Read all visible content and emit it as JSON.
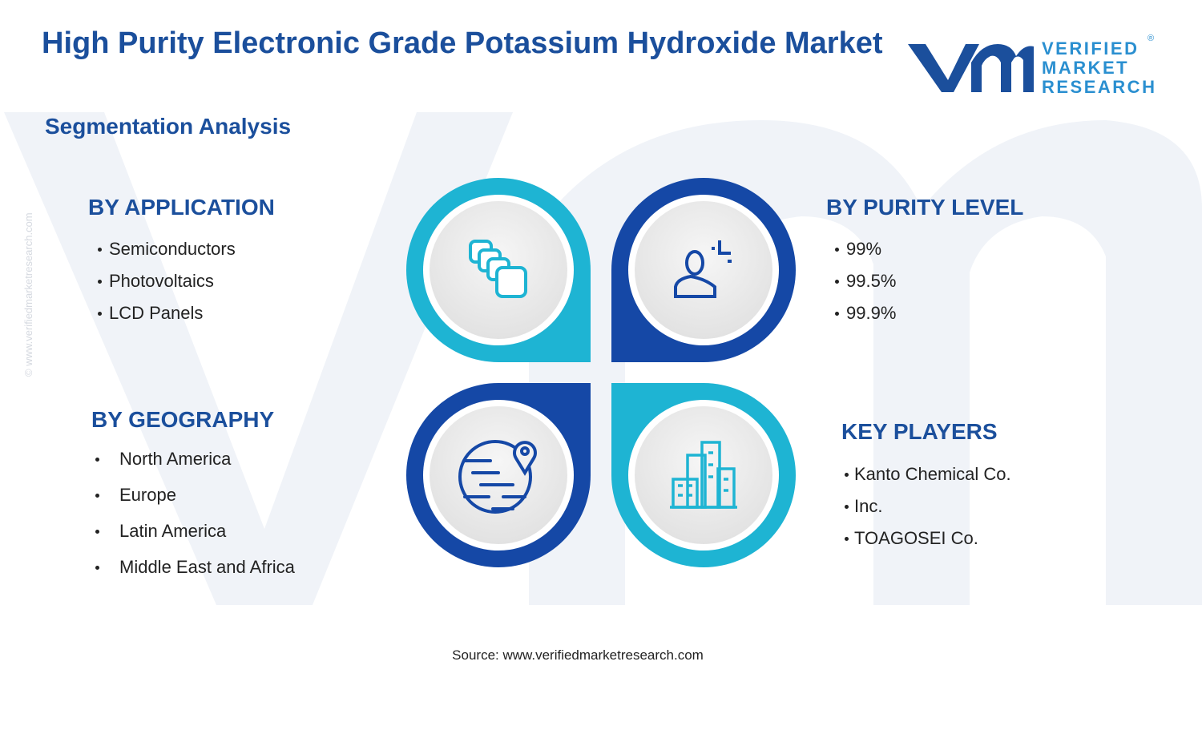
{
  "header": {
    "title": "High Purity Electronic Grade Potassium Hydroxide Market",
    "subtitle": "Segmentation Analysis"
  },
  "logo": {
    "line1": "VERIFIED",
    "line2": "MARKET",
    "line3": "RESEARCH",
    "mark": "®"
  },
  "watermark": "© www.verifiedmarketresearch.com",
  "sections": [
    {
      "title": "BY APPLICATION",
      "items": [
        "Semiconductors",
        "Photovoltaics",
        "LCD Panels"
      ]
    },
    {
      "title": "BY PURITY LEVEL",
      "items": [
        "99%",
        "99.5%",
        "99.9%"
      ]
    },
    {
      "title": "BY GEOGRAPHY",
      "items": [
        "North America",
        "Europe",
        "Latin America",
        "Middle East and Africa"
      ]
    },
    {
      "title": "KEY PLAYERS",
      "items": [
        "Kanto Chemical Co.",
        "Inc.",
        "TOAGOSEI Co."
      ]
    }
  ],
  "source": "Source: www.verifiedmarketresearch.com"
}
